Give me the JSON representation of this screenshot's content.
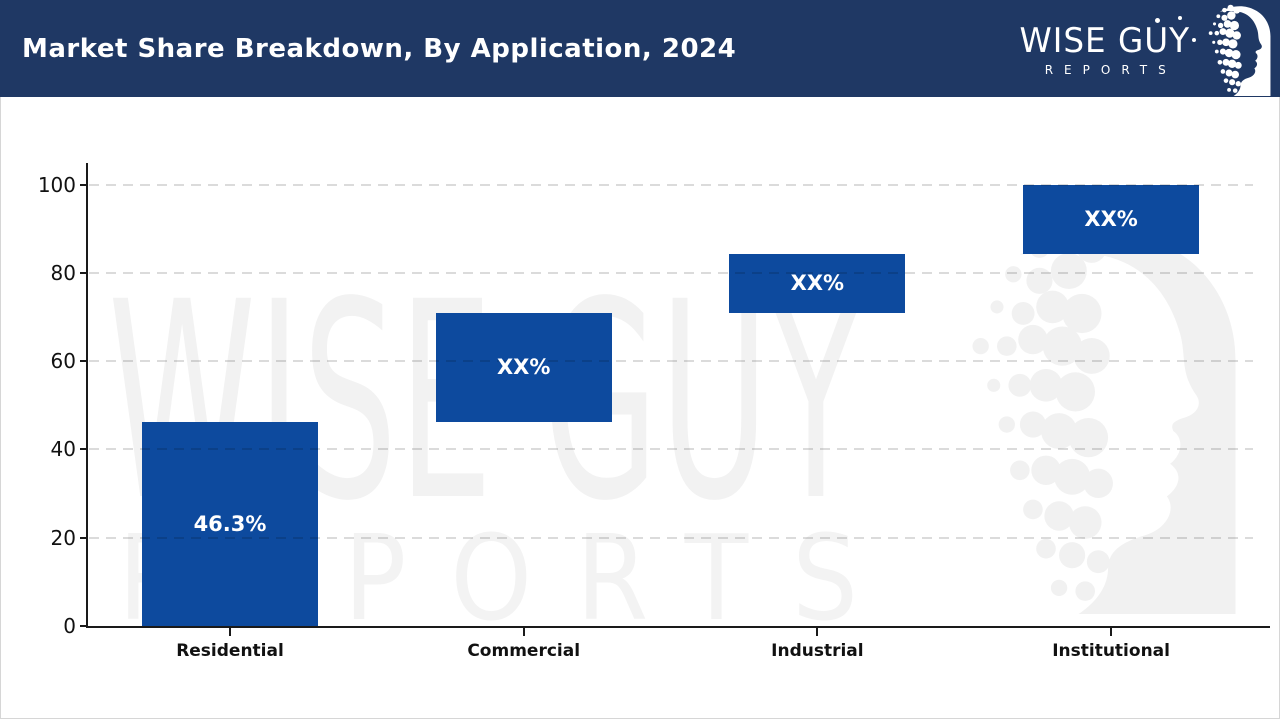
{
  "header": {
    "title": "Market Share Breakdown, By Application, 2024"
  },
  "logo": {
    "line1": "WISE GUY",
    "line2": "REPORTS"
  },
  "watermark": {
    "line1": "WISE GUY",
    "line2": "REPORTS"
  },
  "colors": {
    "header_bg": "#1f3864",
    "bar": "#0d4a9e",
    "grid": "rgba(0,0,0,0.14)",
    "axis": "#1a1a1a",
    "watermark": "#f2f2f2"
  },
  "chart_data": {
    "type": "bar",
    "subtype": "waterfall",
    "title": "Market Share Breakdown, By Application, 2024",
    "categories": [
      "Residential",
      "Commercial",
      "Industrial",
      "Institutional"
    ],
    "segments": [
      {
        "category": "Residential",
        "start": 0,
        "end": 46.3,
        "label": "46.3%"
      },
      {
        "category": "Commercial",
        "start": 46.3,
        "end": 71.0,
        "label": "XX%"
      },
      {
        "category": "Industrial",
        "start": 71.0,
        "end": 84.2,
        "label": "XX%"
      },
      {
        "category": "Institutional",
        "start": 84.2,
        "end": 100,
        "label": "XX%"
      }
    ],
    "yticks": [
      0,
      20,
      40,
      60,
      80,
      100
    ],
    "ylim": [
      0,
      100
    ],
    "xlabel": "",
    "ylabel": "",
    "grid": "horizontal-dashed",
    "legend": "none"
  }
}
